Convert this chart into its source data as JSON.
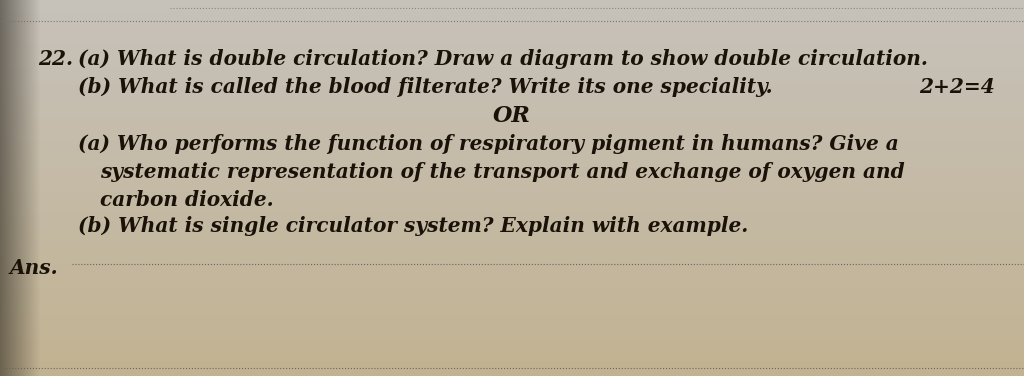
{
  "bg_color_top": "#b0afa8",
  "bg_color_mid": "#c8bfa8",
  "bg_color_bot": "#c4b896",
  "text_color": "#1a1208",
  "dotted_color": "#555550",
  "q_num": "22.",
  "line1a": "(a) What is double circulation? Draw a diagram to show double circulation.",
  "line1b": "(b) What is called the blood filterate? Write its one speciality.",
  "marks": "2+2=4",
  "or_text": "OR",
  "alt_a1": "(a) Who performs the function of respiratory pigment in humans? Give a",
  "alt_a2": "systematic representation of the transport and exchange of oxygen and",
  "alt_a3": "carbon dioxide.",
  "alt_b": "(b) What is single circulator system? Explain with example.",
  "ans_label": "Ans.",
  "fs": 14.5,
  "fs_or": 16,
  "fs_ans": 14.5
}
